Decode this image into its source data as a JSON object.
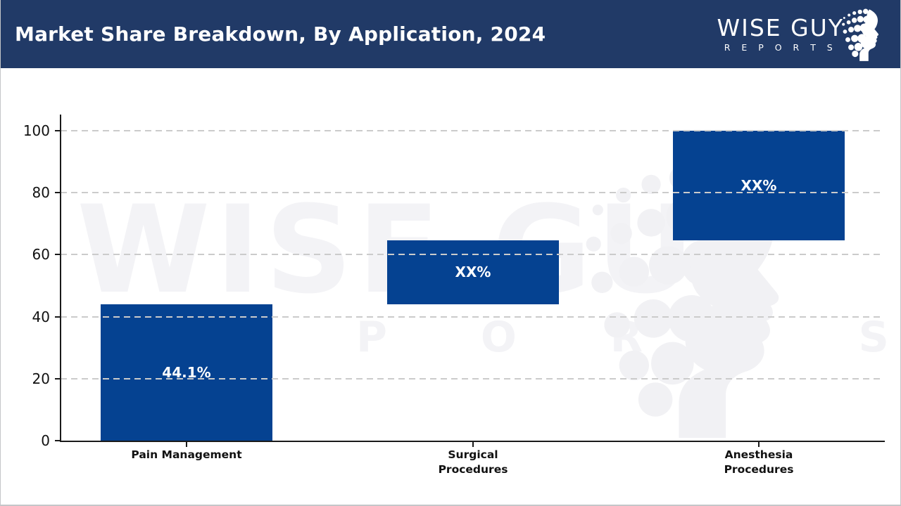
{
  "header": {
    "title": "Market Share Breakdown, By Application, 2024",
    "logo": {
      "name_line": "WISE GUY",
      "reports_line": "R E P O R T S"
    }
  },
  "watermark": {
    "name_line": "WISE GUY",
    "reports_line": "R E P O R T S"
  },
  "colors": {
    "header_bg": "#213a67",
    "header_text": "#ffffff",
    "bar_fill": "#054291",
    "bar_label_text": "#ffffff",
    "gridline": "#cbcbcb",
    "axis": "#1a1a1a",
    "tick_text": "#111111",
    "watermark": "#f3f3f6",
    "page_border": "#c4c6c9"
  },
  "chart_data": {
    "type": "bar",
    "variant": "stacked-breakdown-floating-bars",
    "title": "Market Share Breakdown, By Application, 2024",
    "categories": [
      "Pain Management",
      "Surgical Procedures",
      "Anesthesia Procedures"
    ],
    "category_label_lines": [
      [
        "Pain Management"
      ],
      [
        "Surgical",
        "Procedures"
      ],
      [
        "Anesthesia",
        "Procedures"
      ]
    ],
    "segments": [
      {
        "category": "Pain Management",
        "start": 0,
        "end": 44.1,
        "label": "44.1%"
      },
      {
        "category": "Surgical Procedures",
        "start": 44.1,
        "end": 64.7,
        "label": "XX%"
      },
      {
        "category": "Anesthesia Procedures",
        "start": 64.7,
        "end": 100,
        "label": "XX%"
      }
    ],
    "xlabel": "",
    "ylabel": "",
    "ylim": [
      0,
      100
    ],
    "yticks": [
      0,
      20,
      40,
      60,
      80,
      100
    ],
    "grid": "horizontal-dashed",
    "gridlines_above_bars": true,
    "legend": "none"
  }
}
